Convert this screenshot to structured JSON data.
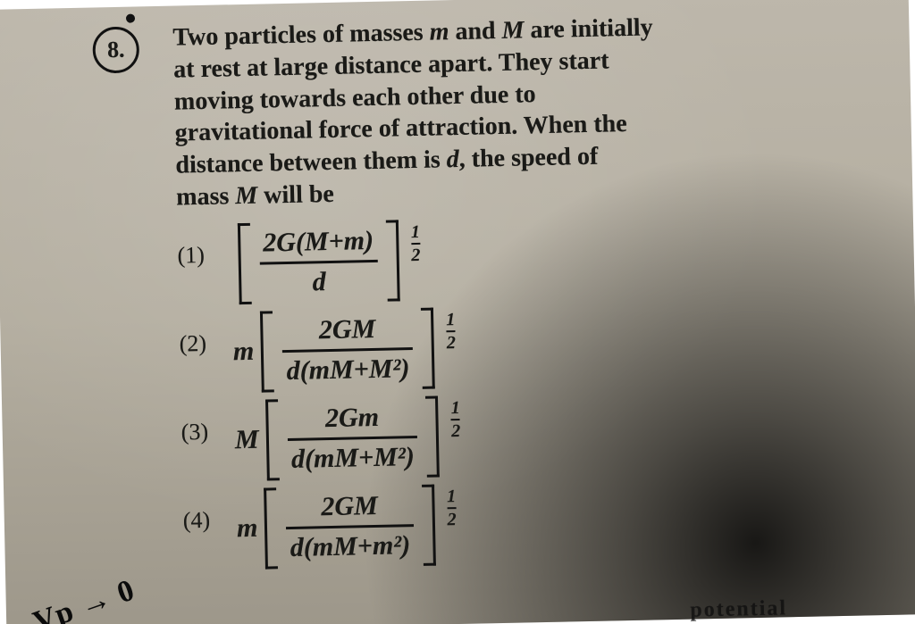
{
  "question_number_glyph": "8.",
  "question_lines": [
    "Two particles of masses <it>m</it> and <it>M</it> are initially",
    "at rest at large distance apart. They start",
    "moving towards each other due to",
    "gravitational force of attraction. When the",
    "distance between them is <it>d</it>, the speed of",
    "mass <it>M</it> will be"
  ],
  "options": [
    {
      "num": "(1)",
      "lead": "",
      "numerator": "2G(M+m)",
      "denominator": "d",
      "exp_num": "1",
      "exp_den": "2"
    },
    {
      "num": "(2)",
      "lead": "m",
      "numerator": "2GM",
      "denominator": "d(mM+M²)",
      "exp_num": "1",
      "exp_den": "2"
    },
    {
      "num": "(3)",
      "lead": "M",
      "numerator": "2Gm",
      "denominator": "d(mM+M²)",
      "exp_num": "1",
      "exp_den": "2"
    },
    {
      "num": "(4)",
      "lead": "m",
      "numerator": "2GM",
      "denominator": "d(mM+m²)",
      "exp_num": "1",
      "exp_den": "2"
    }
  ],
  "handwriting": "· Vp → 0",
  "cropped_below": "potential",
  "colors": {
    "ink": "#111111",
    "paper_top": "#bdb7ab",
    "paper_mid": "#b3ad9f",
    "paper_bot": "#9d978a"
  },
  "font": {
    "body_pt": 28,
    "option_pt": 30,
    "weight": "700"
  }
}
